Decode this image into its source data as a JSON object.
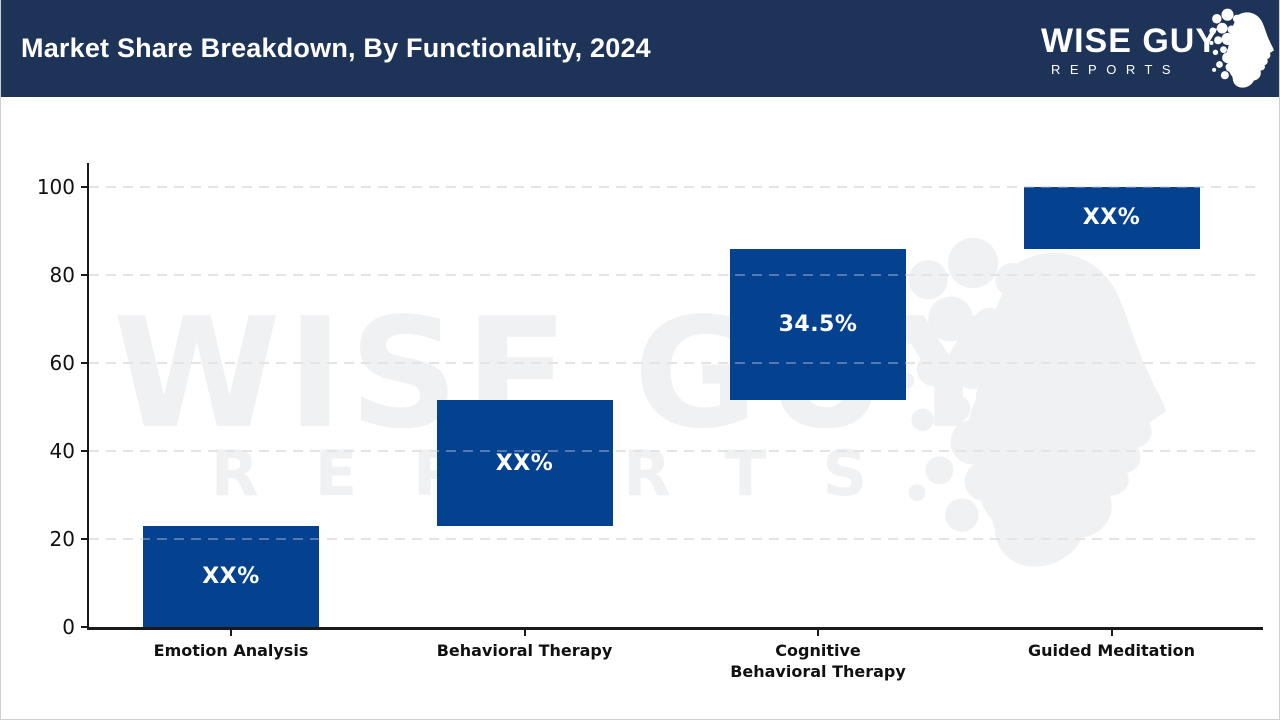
{
  "header": {
    "title": "Market Share Breakdown, By Functionality, 2024"
  },
  "logo": {
    "line1": "WISE GUY",
    "line2": "REPORTS",
    "face_icon": "dotted-face-profile"
  },
  "watermark": {
    "line1": "WISE GUY",
    "line2": "REPORTS",
    "face_icon": "dotted-face-profile"
  },
  "colors": {
    "header_bg": "#1e3358",
    "bar": "#04418f",
    "value_label": "#ffffff",
    "gridline": "#d9d9d9",
    "axis": "#1a1a1a",
    "watermark": "#f0f1f3"
  },
  "chart_data": {
    "type": "bar",
    "subtype": "floating-waterfall",
    "title": "Market Share Breakdown, By Functionality, 2024",
    "xlabel": "",
    "ylabel": "",
    "ylim": [
      0,
      100
    ],
    "yticks": [
      0,
      20,
      40,
      60,
      80,
      100
    ],
    "grid": "horizontal-dashed",
    "legend": "none",
    "categories": [
      "Emotion Analysis",
      "Behavioral Therapy",
      "Cognitive Behavioral Therapy",
      "Guided Meditation"
    ],
    "segments": [
      {
        "category": "Emotion Analysis",
        "category_lines": [
          "Emotion Analysis"
        ],
        "start": 0,
        "end": 23,
        "height": 23,
        "label": "XX%"
      },
      {
        "category": "Behavioral Therapy",
        "category_lines": [
          "Behavioral Therapy"
        ],
        "start": 23,
        "end": 51.5,
        "height": 28.5,
        "label": "XX%"
      },
      {
        "category": "Cognitive Behavioral Therapy",
        "category_lines": [
          "Cognitive",
          "Behavioral Therapy"
        ],
        "start": 51.5,
        "end": 86,
        "height": 34.5,
        "label": "34.5%"
      },
      {
        "category": "Guided Meditation",
        "category_lines": [
          "Guided Meditation"
        ],
        "start": 86,
        "end": 100,
        "height": 14,
        "label": "XX%"
      }
    ]
  }
}
